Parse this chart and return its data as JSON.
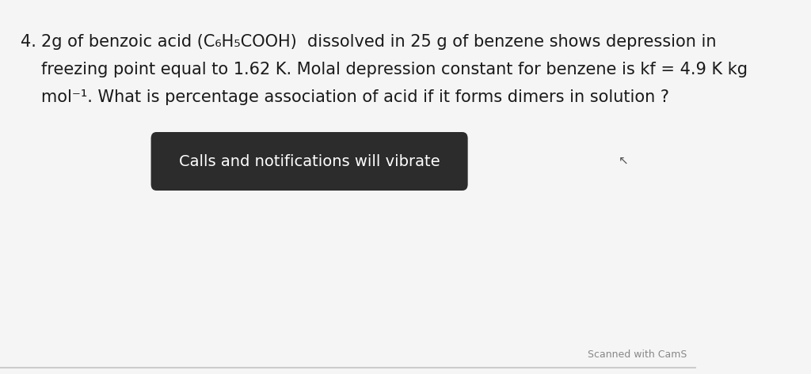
{
  "background_color": "#f5f5f5",
  "text_color": "#1a1a1a",
  "question_number": "4.",
  "line1": "2g of benzoic acid (C₆H₅COOH)  dissolved in 25 g of benzene shows depression in",
  "line2": "freezing point equal to 1.62 K. Molal depression constant for benzene is kf = 4.9 K kg",
  "line3": "mol⁻¹. What is percentage association of acid if it forms dimers in solution ?",
  "button_text": "Calls and notifications will vibrate",
  "button_bg": "#2c2c2c",
  "button_text_color": "#ffffff",
  "watermark": "Scanned with CamS",
  "separator_color": "#cccccc",
  "font_size_main": 15,
  "font_size_button": 14,
  "font_size_watermark": 9
}
